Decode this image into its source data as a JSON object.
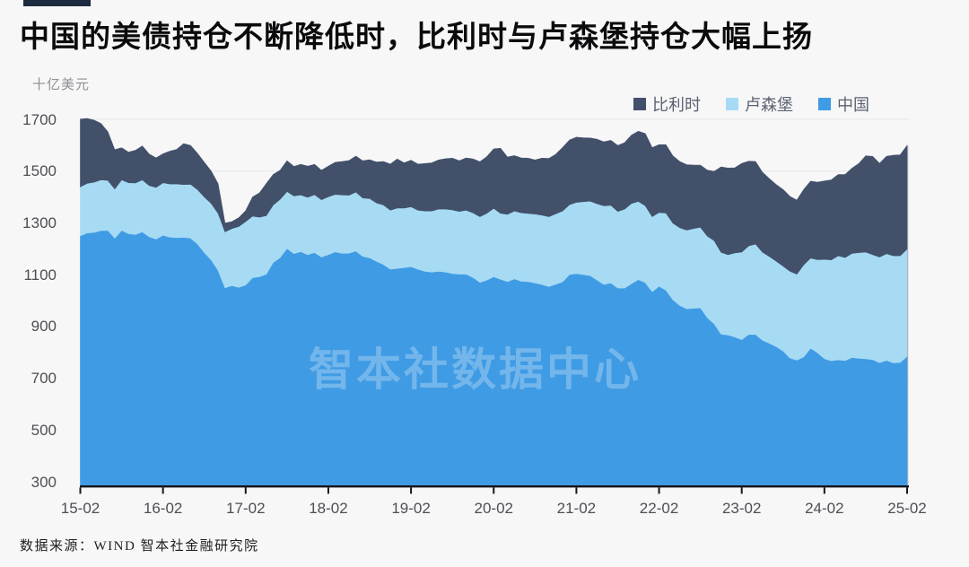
{
  "title": "中国的美债持仓不断降低时，比利时与卢森堡持仓大幅上扬",
  "unit_label": "十亿美元",
  "watermark": "智本社数据中心",
  "source_note": "数据来源：WIND 智本社金融研究院",
  "accent_color": "#1c2b3f",
  "background_color": "#f7f7f8",
  "legend": {
    "position": "top-right",
    "items": [
      {
        "label": "比利时",
        "color": "#42506a"
      },
      {
        "label": "卢森堡",
        "color": "#a6dbf3"
      },
      {
        "label": "中国",
        "color": "#3f9be4"
      }
    ]
  },
  "chart_data": {
    "type": "area",
    "stacked": true,
    "title": "中国的美债持仓不断降低时，比利时与卢森堡持仓大幅上扬",
    "ylabel": "十亿美元",
    "ylim": [
      300,
      1700
    ],
    "y_ticks": [
      300,
      500,
      700,
      900,
      1100,
      1300,
      1500,
      1700
    ],
    "grid": true,
    "grid_color": "#e7e7ea",
    "axis_color": "#15151e",
    "x_unit": "month",
    "x_range": [
      "2015-02",
      "2025-02"
    ],
    "x_tick_labels": [
      "15-02",
      "16-02",
      "17-02",
      "18-02",
      "19-02",
      "20-02",
      "21-02",
      "22-02",
      "23-02",
      "24-02",
      "25-02"
    ],
    "x_tick_interval_months": 12,
    "legend_position": "top-right",
    "series": [
      {
        "name": "中国",
        "color": "#3f9be4",
        "values": [
          1250,
          1261,
          1263,
          1270,
          1271,
          1241,
          1271,
          1258,
          1255,
          1265,
          1246,
          1237,
          1252,
          1245,
          1243,
          1244,
          1241,
          1219,
          1185,
          1157,
          1116,
          1049,
          1058,
          1051,
          1060,
          1088,
          1092,
          1102,
          1147,
          1166,
          1201,
          1181,
          1189,
          1177,
          1185,
          1168,
          1177,
          1188,
          1182,
          1183,
          1191,
          1171,
          1165,
          1151,
          1139,
          1121,
          1124,
          1127,
          1131,
          1121,
          1113,
          1110,
          1113,
          1110,
          1104,
          1102,
          1102,
          1089,
          1070,
          1079,
          1092,
          1082,
          1073,
          1084,
          1074,
          1073,
          1068,
          1062,
          1054,
          1063,
          1072,
          1100,
          1104,
          1100,
          1096,
          1079,
          1062,
          1068,
          1048,
          1048,
          1065,
          1081,
          1069,
          1034,
          1055,
          1040,
          1003,
          981,
          968,
          970,
          972,
          934,
          910,
          870,
          867,
          859,
          849,
          869,
          869,
          847,
          835,
          822,
          805,
          778,
          770,
          782,
          816,
          798,
          775,
          767,
          771,
          768,
          780,
          777,
          775,
          772,
          760,
          769,
          759,
          761,
          784
        ]
      },
      {
        "name": "卢森堡",
        "color": "#a6dbf3",
        "values": [
          189,
          192,
          194,
          196,
          193,
          190,
          195,
          197,
          199,
          201,
          198,
          200,
          203,
          205,
          207,
          204,
          208,
          210,
          215,
          218,
          221,
          216,
          220,
          235,
          245,
          238,
          230,
          226,
          222,
          225,
          220,
          223,
          219,
          222,
          224,
          221,
          224,
          222,
          226,
          224,
          228,
          225,
          229,
          226,
          230,
          228,
          233,
          230,
          231,
          228,
          233,
          236,
          240,
          243,
          246,
          242,
          247,
          250,
          254,
          258,
          264,
          255,
          260,
          262,
          265,
          263,
          266,
          268,
          270,
          272,
          274,
          270,
          275,
          282,
          288,
          295,
          304,
          300,
          296,
          305,
          310,
          302,
          297,
          290,
          285,
          298,
          296,
          300,
          304,
          308,
          311,
          315,
          321,
          316,
          310,
          325,
          338,
          342,
          349,
          340,
          335,
          330,
          328,
          335,
          332,
          356,
          348,
          360,
          384,
          390,
          402,
          398,
          402,
          408,
          412,
          405,
          408,
          412,
          414,
          412,
          415
        ]
      },
      {
        "name": "比利时",
        "color": "#42506a",
        "values": [
          262,
          250,
          240,
          218,
          188,
          152,
          124,
          118,
          126,
          131,
          122,
          114,
          112,
          127,
          134,
          158,
          150,
          140,
          134,
          125,
          114,
          34,
          27,
          34,
          42,
          74,
          94,
          124,
          118,
          112,
          119,
          114,
          118,
          120,
          117,
          114,
          118,
          124,
          129,
          134,
          139,
          144,
          150,
          158,
          168,
          178,
          190,
          175,
          180,
          178,
          183,
          186,
          190,
          195,
          200,
          196,
          202,
          208,
          212,
          219,
          230,
          251,
          221,
          214,
          212,
          214,
          209,
          220,
          225,
          230,
          245,
          250,
          252,
          247,
          244,
          249,
          247,
          251,
          255,
          257,
          264,
          271,
          279,
          267,
          262,
          264,
          260,
          256,
          253,
          245,
          240,
          255,
          268,
          330,
          335,
          329,
          343,
          327,
          319,
          309,
          301,
          296,
          296,
          289,
          286,
          291,
          297,
          299,
          303,
          309,
          314,
          321,
          329,
          344,
          372,
          380,
          362,
          376,
          388,
          390,
          400
        ]
      }
    ]
  }
}
